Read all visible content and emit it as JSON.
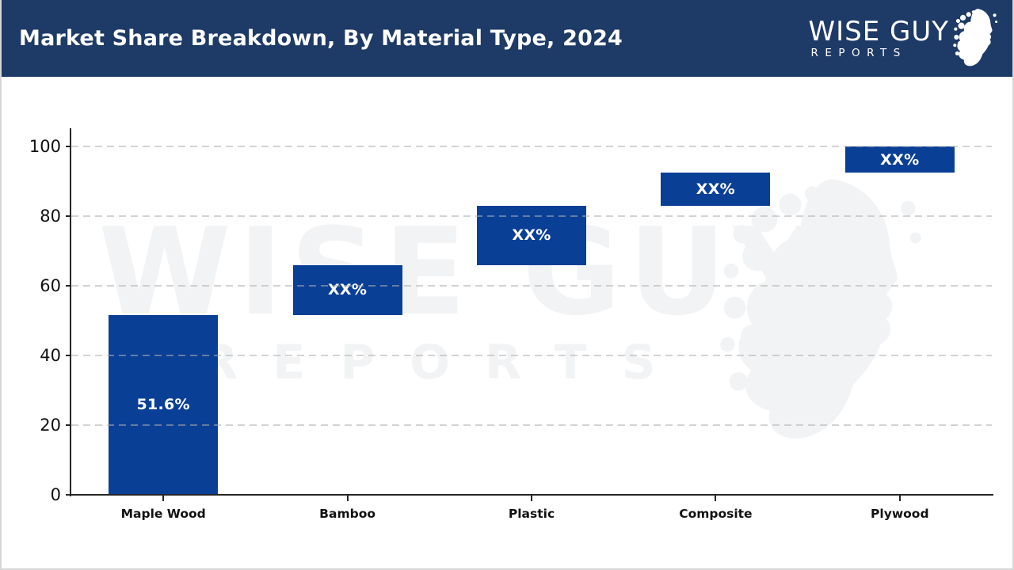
{
  "header": {
    "title": "Market Share Breakdown, By Material Type, 2024",
    "brand": {
      "line1": "WISE GUY",
      "line2": "REPORTS"
    }
  },
  "watermark": {
    "line1": "WISE GUY",
    "line2": "REPORTS"
  },
  "colors": {
    "header_bg": "#1e3a66",
    "bar": "#0a3f96",
    "bar_label": "#ffffff",
    "grid": "#d9d9d9",
    "axis": "#262626",
    "tick_text": "#111111",
    "watermark": "#f2f3f5"
  },
  "chart_data": {
    "type": "bar",
    "subtype": "waterfall-style floating bars",
    "title": "Market Share Breakdown, By Material Type, 2024",
    "categories": [
      "Maple Wood",
      "Bamboo",
      "Plastic",
      "Composite",
      "Plywood"
    ],
    "series": [
      {
        "name": "Market share (%)",
        "segments": [
          {
            "category": "Maple Wood",
            "start": 0,
            "end": 51.6,
            "label": "51.6%"
          },
          {
            "category": "Bamboo",
            "start": 51.6,
            "end": 66,
            "label": "XX%"
          },
          {
            "category": "Plastic",
            "start": 66,
            "end": 83,
            "label": "XX%"
          },
          {
            "category": "Composite",
            "start": 83,
            "end": 92.5,
            "label": "XX%"
          },
          {
            "category": "Plywood",
            "start": 92.5,
            "end": 100,
            "label": "XX%"
          }
        ]
      }
    ],
    "xlabel": "",
    "ylabel": "",
    "ylim": [
      0,
      105
    ],
    "yticks": [
      0,
      20,
      40,
      60,
      80,
      100
    ],
    "grid": "horizontal dashed, drawn over bars",
    "legend": "none"
  }
}
